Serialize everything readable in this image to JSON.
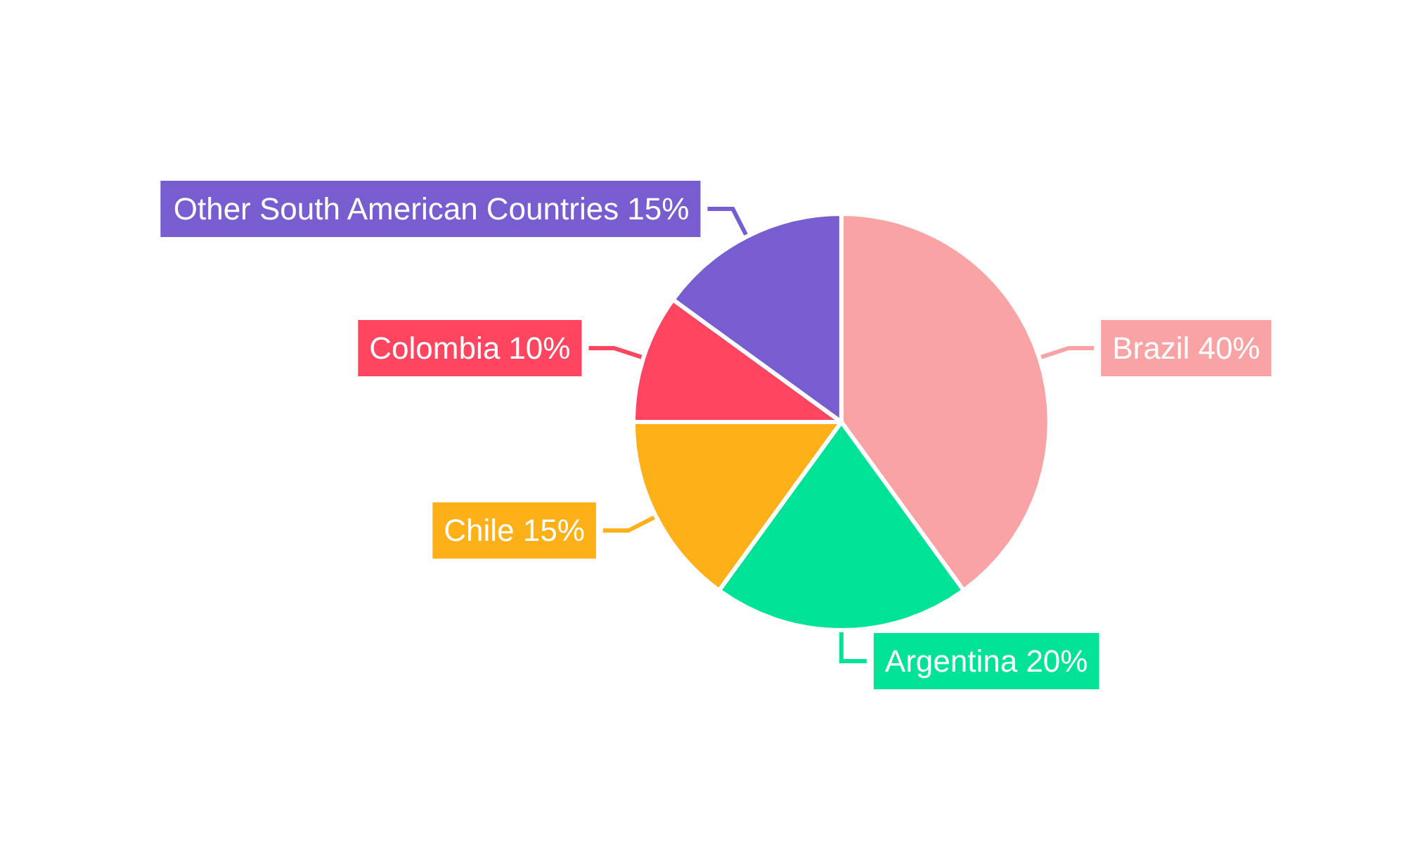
{
  "chart_data": {
    "type": "pie",
    "categories": [
      "Brazil",
      "Argentina",
      "Chile",
      "Colombia",
      "Other South American Countries"
    ],
    "values": [
      40,
      20,
      15,
      10,
      15
    ],
    "value_labels": [
      "40%",
      "20%",
      "15%",
      "10%",
      "15%"
    ],
    "colors": [
      "#f9a3a4",
      "#00e396",
      "#feb019",
      "#ff4560",
      "#775dd0"
    ],
    "legend": false
  }
}
